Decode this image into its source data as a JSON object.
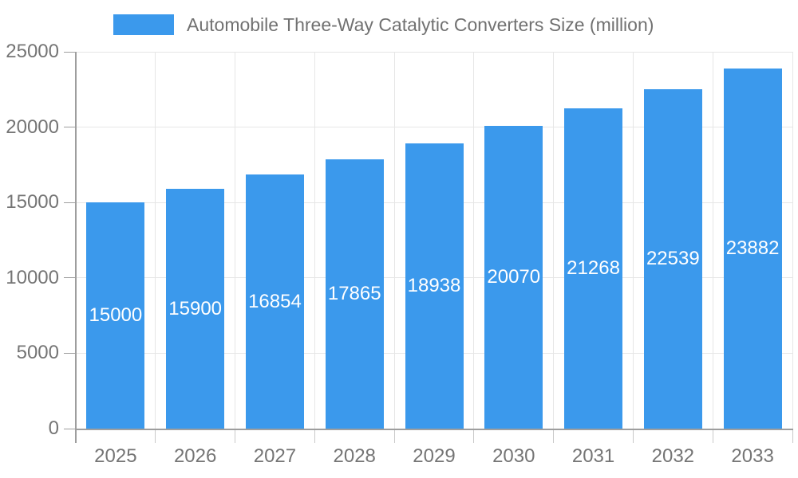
{
  "legend": {
    "label": "Automobile Three-Way Catalytic Converters Size (million)"
  },
  "colors": {
    "bar": "#3b99ec",
    "axis_line": "#9e9e9e",
    "y_tick_line": "#9e9e9e",
    "x_tick_line": "#c9c9c9",
    "grid_line": "#e6e6e6",
    "axis_text": "#757575",
    "legend_text": "#717171",
    "value_text": "#ffffff",
    "background": "#ffffff"
  },
  "chart_data": {
    "type": "bar",
    "title": "Automobile Three-Way Catalytic Converters Size (million)",
    "series_name": "Automobile Three-Way Catalytic Converters Size (million)",
    "categories": [
      "2025",
      "2026",
      "2027",
      "2028",
      "2029",
      "2030",
      "2031",
      "2032",
      "2033"
    ],
    "values": [
      15000,
      15900,
      16854,
      17865,
      18938,
      20070,
      21268,
      22539,
      23882
    ],
    "xlabel": "",
    "ylabel": "",
    "ylim": [
      0,
      25000
    ],
    "y_ticks": [
      0,
      5000,
      10000,
      15000,
      20000,
      25000
    ],
    "grid": true,
    "grid_vertical": true,
    "legend_position": "top",
    "value_label_position": "inside-middle"
  }
}
